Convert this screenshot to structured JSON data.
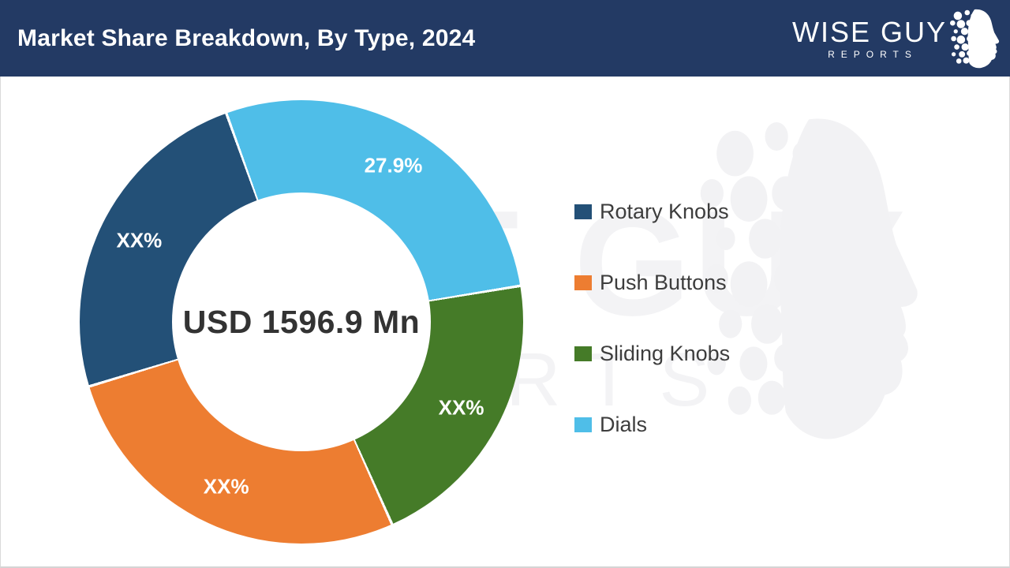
{
  "header": {
    "title": "Market Share Breakdown, By Type, 2024",
    "logo": {
      "line1": "WISE GUY",
      "line2": "REPORTS"
    }
  },
  "chart_data": {
    "type": "donut",
    "title": "Market Share Breakdown, By Type, 2024",
    "center_label": "USD 1596.9 Mn",
    "start_angle_deg": -19.8,
    "segments": [
      {
        "label": "Dials",
        "value_pct": 27.9,
        "display": "27.9%",
        "color": "#4FBEE8"
      },
      {
        "label": "Sliding Knobs",
        "value_pct": 20.9,
        "display": "XX%",
        "color": "#457B28"
      },
      {
        "label": "Push Buttons",
        "value_pct": 27.0,
        "display": "XX%",
        "color": "#ED7D31"
      },
      {
        "label": "Rotary Knobs",
        "value_pct": 24.2,
        "display": "XX%",
        "color": "#235077"
      }
    ],
    "legend_position": "right"
  },
  "legend": {
    "items": [
      {
        "label": "Rotary Knobs",
        "color": "#235077"
      },
      {
        "label": "Push Buttons",
        "color": "#ED7D31"
      },
      {
        "label": "Sliding Knobs",
        "color": "#457B28"
      },
      {
        "label": "Dials",
        "color": "#4FBEE8"
      }
    ]
  },
  "watermark": {
    "line1": "WISE GUY",
    "line2": "REPORTS"
  }
}
